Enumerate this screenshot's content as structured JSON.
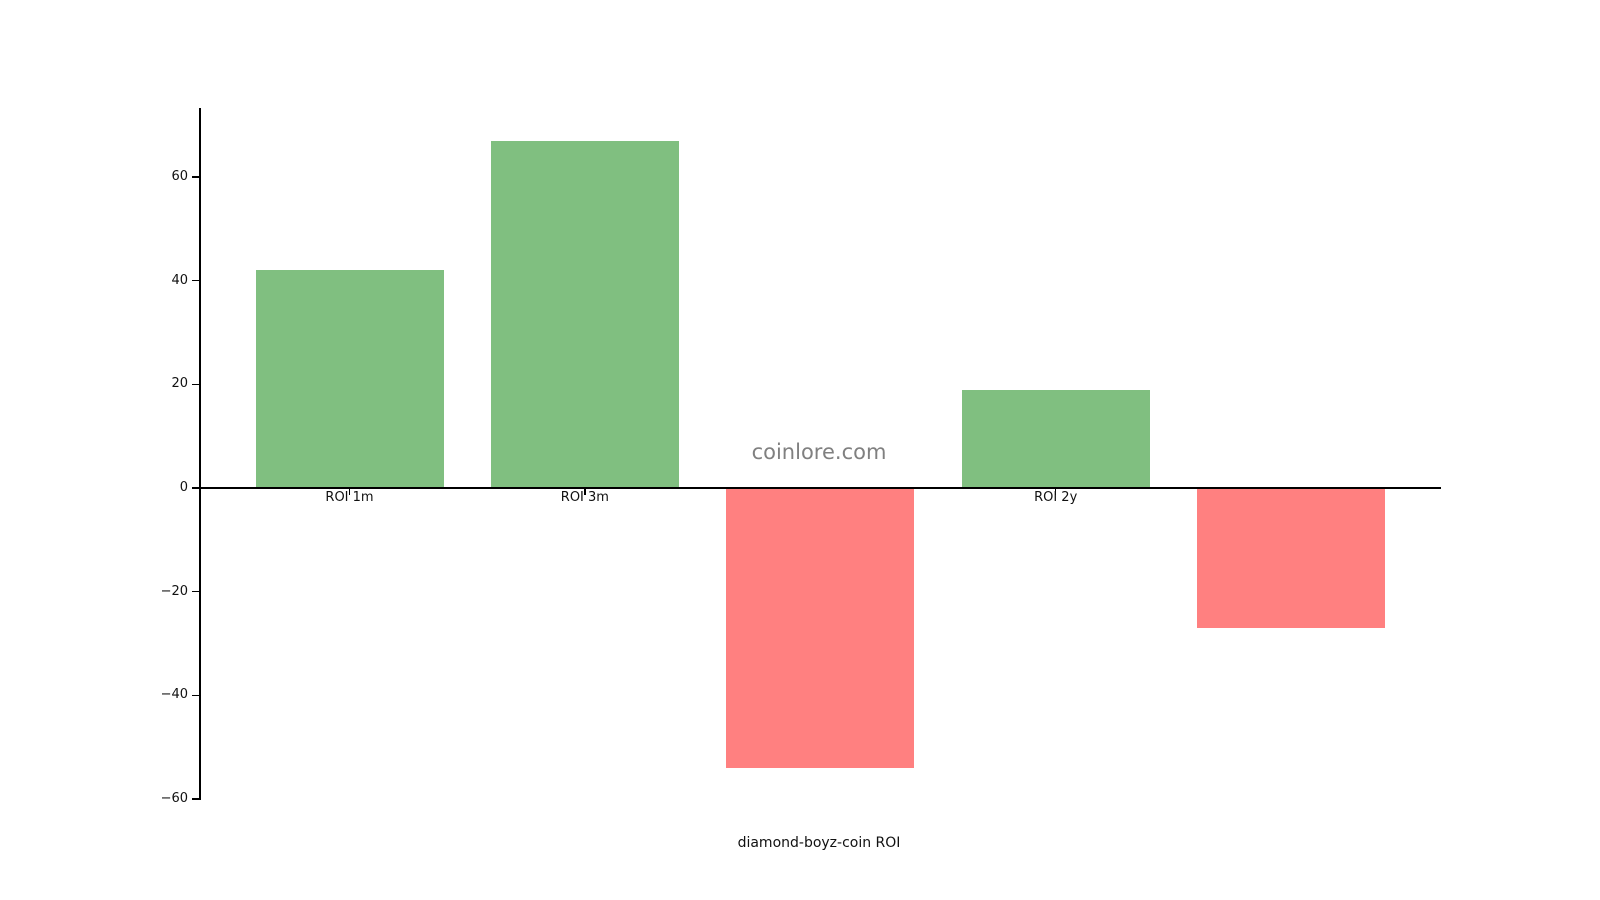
{
  "watermark": "coinlore.com",
  "chart_data": {
    "type": "bar",
    "title": "",
    "xlabel": "diamond-boyz-coin ROI",
    "ylabel": "",
    "categories": [
      "ROI 1m",
      "ROI 3m",
      "",
      "ROI 2y",
      ""
    ],
    "values": [
      42,
      67,
      -54,
      19,
      -27
    ],
    "bar_colors": [
      "#80bf80",
      "#80bf80",
      "#ff8080",
      "#80bf80",
      "#ff8080"
    ],
    "positive_color": "#80bf80",
    "negative_color": "#ff8080",
    "y_ticks": [
      60,
      40,
      20,
      0,
      -20,
      -40,
      -60
    ],
    "y_tick_labels": [
      "60",
      "40",
      "20",
      "0",
      "−20",
      "−40",
      "−60"
    ],
    "ylim": [
      -60.3,
      73.4
    ],
    "grid": false,
    "legend": false,
    "axis_color": "#000000",
    "watermark": "coinlore.com",
    "watermark_color": "#808080"
  }
}
